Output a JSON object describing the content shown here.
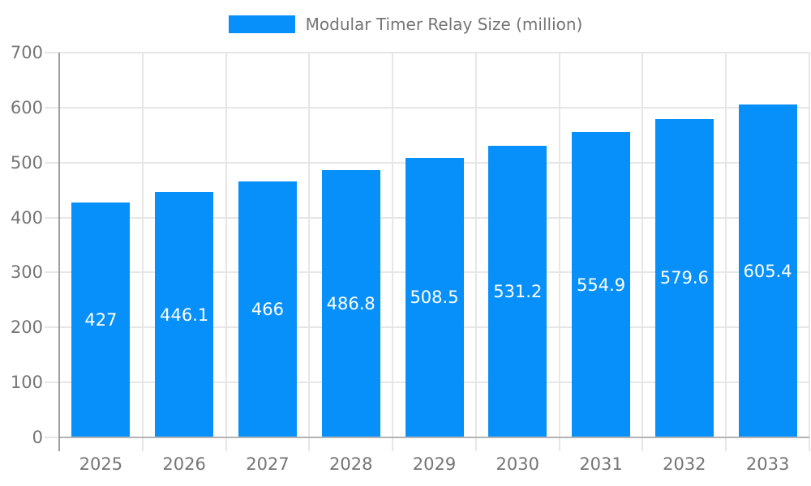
{
  "chart_data": {
    "type": "bar",
    "title": "Modular Timer Relay Size (million)",
    "categories": [
      "2025",
      "2026",
      "2027",
      "2028",
      "2029",
      "2030",
      "2031",
      "2032",
      "2033"
    ],
    "values": [
      427,
      446.1,
      466,
      486.8,
      508.5,
      531.2,
      554.9,
      579.6,
      605.4
    ],
    "xlabel": "",
    "ylabel": "",
    "ylim": [
      0,
      700
    ],
    "ytick_step": 100,
    "grid": true,
    "legend_position": "top",
    "colors": {
      "bar": "#0890fa",
      "grid": "#e6e6e6",
      "axis": "#9e9e9e",
      "x_axis_line": "#b3b3b3",
      "text": "#757575",
      "bar_label": "#ffffff"
    }
  }
}
